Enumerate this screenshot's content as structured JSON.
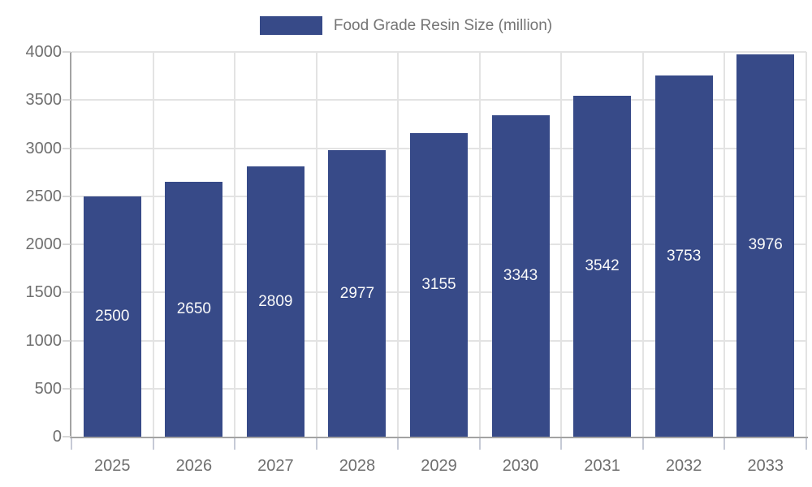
{
  "chart_data": {
    "type": "bar",
    "legend": "Food Grade Resin Size (million)",
    "legend_position": "top",
    "categories": [
      "2025",
      "2026",
      "2027",
      "2028",
      "2029",
      "2030",
      "2031",
      "2032",
      "2033"
    ],
    "values": [
      2500,
      2650,
      2809,
      2977,
      3155,
      3343,
      3542,
      3753,
      3976
    ],
    "xlabel": "",
    "ylabel": "",
    "ylim": [
      0,
      4000
    ],
    "yticks": [
      0,
      500,
      1000,
      1500,
      2000,
      2500,
      3000,
      3500,
      4000
    ],
    "grid": true,
    "colors": {
      "bar": "#374a88",
      "bar_value_label": "#fafafa",
      "axis_line": "#a3a3a3",
      "gridline": "#e3e3e3",
      "y_tick": "#d8d8d8",
      "x_tick": "#c6cad6",
      "axis_text": "#6f6f6f",
      "legend_text": "#757575"
    }
  }
}
